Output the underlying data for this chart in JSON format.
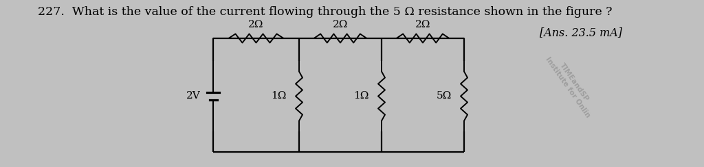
{
  "bg_color": "#c0c0c0",
  "title_text": "227.  What is the value of the current flowing through the 5 Ω resistance shown in the figure ?",
  "ans_text": "[Ans. 23.5 mA]",
  "title_fontsize": 12.5,
  "ans_fontsize": 11.5,
  "series_resistors": [
    "2Ω",
    "2Ω",
    "2Ω"
  ],
  "shunt_labels": [
    "2V",
    "1Ω",
    "1Ω",
    "5Ω"
  ],
  "watermark_line1": "TIMEandSP",
  "watermark_line2": "Institute for Onlin"
}
